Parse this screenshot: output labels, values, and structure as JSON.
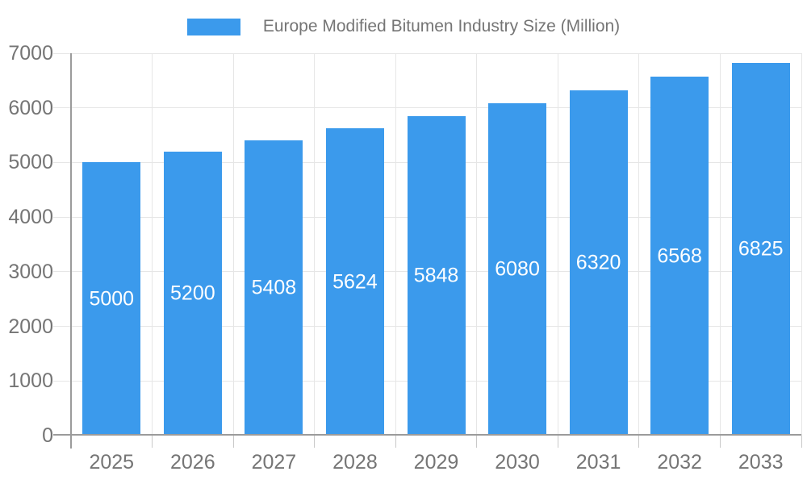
{
  "legend": {
    "label": "Europe Modified Bitumen Industry Size (Million)"
  },
  "colors": {
    "bar": "#3B9AEC",
    "grid": "#E6E6E6",
    "axis": "#9B9B9B",
    "tick": "#C9C9C9",
    "text": "#757575",
    "value_label": "#FFFFFF",
    "background": "#FFFFFF"
  },
  "chart_data": {
    "type": "bar",
    "title": "Europe Modified Bitumen Industry Size (Million)",
    "categories": [
      "2025",
      "2026",
      "2027",
      "2028",
      "2029",
      "2030",
      "2031",
      "2032",
      "2033"
    ],
    "values": [
      5000,
      5200,
      5408,
      5624,
      5848,
      6080,
      6320,
      6568,
      6825
    ],
    "xlabel": "",
    "ylabel": "",
    "ylim": [
      0,
      7000
    ],
    "yticks": [
      0,
      1000,
      2000,
      3000,
      4000,
      5000,
      6000,
      7000
    ],
    "grid": true,
    "legend_position": "top",
    "value_labels": "inside-center"
  }
}
